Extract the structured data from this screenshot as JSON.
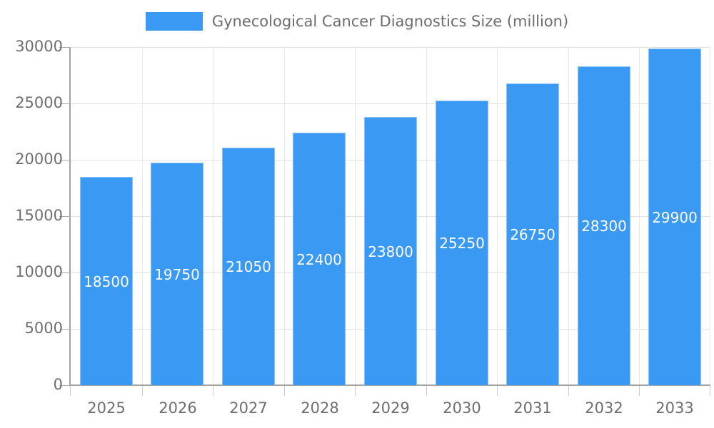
{
  "legend": {
    "label": "Gynecological Cancer Diagnostics Size (million)"
  },
  "colors": {
    "bar_fill": "#3a99f2",
    "bar_edge": "#8cc2f7",
    "bar_label_text": "#ffffff",
    "legend_text": "#6d6d6d",
    "axis_text": "#6e6e6e",
    "grid_horizontal": "#e3e3e3",
    "grid_vertical": "#e8e8e8",
    "axis_line": "#a3a3a3",
    "y_tick": "#ababab",
    "x_tick": "#cccccc",
    "background": "#ffffff"
  },
  "chart_data": {
    "type": "bar",
    "title": "Gynecological Cancer Diagnostics Size (million)",
    "categories": [
      "2025",
      "2026",
      "2027",
      "2028",
      "2029",
      "2030",
      "2031",
      "2032",
      "2033"
    ],
    "values": [
      18500,
      19750,
      21050,
      22400,
      23800,
      25250,
      26750,
      28300,
      29900
    ],
    "bar_value_labels": [
      "18500",
      "19750",
      "21050",
      "22400",
      "23800",
      "25250",
      "26750",
      "28300",
      "29900"
    ],
    "xlabel": "",
    "ylabel": "",
    "ylim": [
      0,
      30000
    ],
    "yticks": [
      0,
      5000,
      10000,
      15000,
      20000,
      25000,
      30000
    ],
    "ytick_labels": [
      "0",
      "5000",
      "10000",
      "15000",
      "20000",
      "25000",
      "30000"
    ],
    "grid": true,
    "legend_position": "top-center",
    "value_label_position": "inside-center"
  }
}
